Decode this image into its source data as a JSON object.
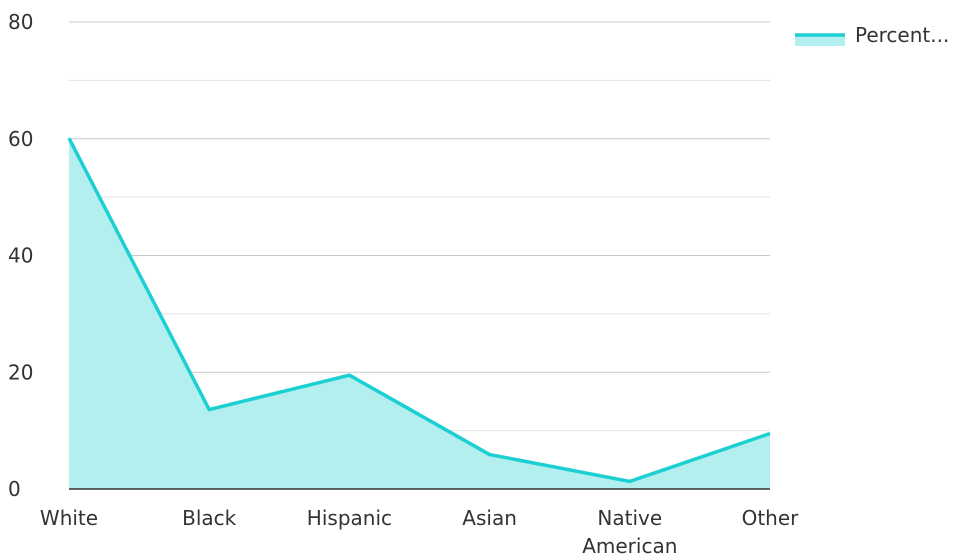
{
  "chart_data": {
    "type": "area",
    "categories": [
      "White",
      "Black",
      "Hispanic",
      "Asian",
      "Native American",
      "Other"
    ],
    "category_lines": [
      [
        "White"
      ],
      [
        "Black"
      ],
      [
        "Hispanic"
      ],
      [
        "Asian"
      ],
      [
        "Native",
        "American"
      ],
      [
        "Other"
      ]
    ],
    "series": [
      {
        "name": "Percent...",
        "values": [
          60.1,
          13.6,
          19.5,
          5.9,
          1.3,
          9.5
        ]
      }
    ],
    "ylim": [
      0,
      80
    ],
    "yticks": [
      "0",
      "20",
      "40",
      "60",
      "80"
    ],
    "grid": true,
    "legend_position": "top-right",
    "line_color": "#1ccfd3",
    "fill_color": "#b2efee",
    "grid_color": "#c8c8c8",
    "minor_grid_color": "#e2e2e2"
  }
}
